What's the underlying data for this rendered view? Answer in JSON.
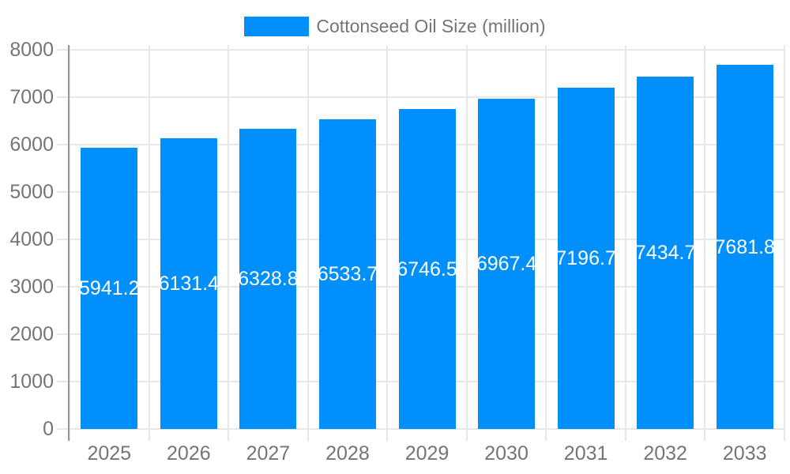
{
  "legend": {
    "label": "Cottonseed Oil Size (million)"
  },
  "colors": {
    "bar": "#008FFB",
    "grid": "#e7e7e7",
    "axis_line": "#999999",
    "label_text": "#757575",
    "value_label_text": "#ffffff",
    "background": "#ffffff"
  },
  "chart_data": {
    "type": "bar",
    "title": "",
    "legend_entries": [
      "Cottonseed Oil Size (million)"
    ],
    "legend_position": "top",
    "categories": [
      "2025",
      "2026",
      "2027",
      "2028",
      "2029",
      "2030",
      "2031",
      "2032",
      "2033"
    ],
    "series": [
      {
        "name": "Cottonseed Oil Size (million)",
        "values": [
          5941.2,
          6131.4,
          6328.8,
          6533.7,
          6746.5,
          6967.4,
          7196.7,
          7434.7,
          7681.8
        ]
      }
    ],
    "value_labels": [
      "5941.2",
      "6131.4",
      "6328.8",
      "6533.7",
      "6746.5",
      "6967.4",
      "7196.7",
      "7434.7",
      "7681.8"
    ],
    "xlabel": "",
    "ylabel": "",
    "ylim": [
      0,
      8000
    ],
    "yticks": [
      0,
      1000,
      2000,
      3000,
      4000,
      5000,
      6000,
      7000,
      8000
    ],
    "grid": true
  }
}
